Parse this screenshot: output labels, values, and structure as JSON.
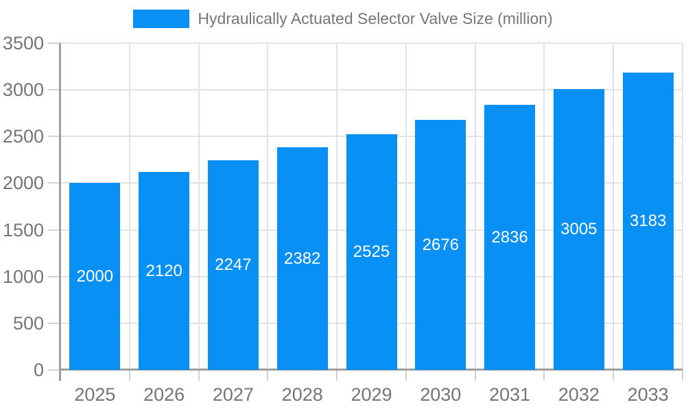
{
  "legend": {
    "items": [
      {
        "label": "Hydraulically Actuated Selector Valve Size (million)",
        "color": "#0890f5"
      }
    ]
  },
  "chart_data": {
    "type": "bar",
    "title": "Hydraulically Actuated Selector Valve Size (million)",
    "categories": [
      "2025",
      "2026",
      "2027",
      "2028",
      "2029",
      "2030",
      "2031",
      "2032",
      "2033"
    ],
    "values": [
      2000,
      2120,
      2247,
      2382,
      2525,
      2676,
      2836,
      3005,
      3183
    ],
    "xlabel": "",
    "ylabel": "",
    "ylim": [
      0,
      3500
    ],
    "yticks": [
      0,
      500,
      1000,
      1500,
      2000,
      2500,
      3000,
      3500
    ],
    "grid": true,
    "legend_position": "top",
    "bar_color": "#0890f5",
    "value_label_color": "#ffffff"
  },
  "colors": {
    "accent": "#0890f5",
    "text_muted": "#757575",
    "axis": "#9e9e9e",
    "gridline": "#e3e3e3",
    "tick": "#d2d2d2",
    "background": "#ffffff"
  }
}
